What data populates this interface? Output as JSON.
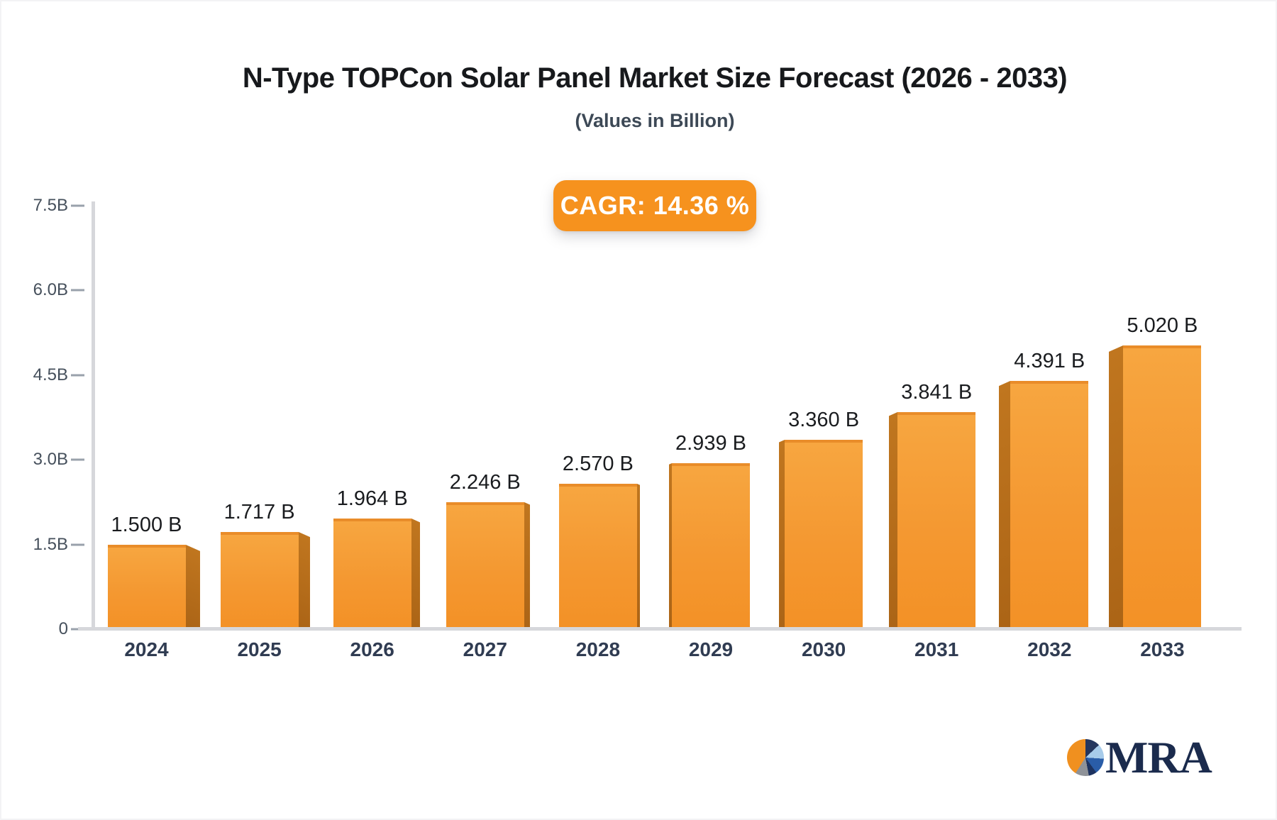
{
  "header": {
    "title": "N-Type TOPCon Solar Panel Market Size Forecast (2026 - 2033)",
    "subtitle": "(Values in Billion)",
    "cagr_label": "CAGR: 14.36 %"
  },
  "chart_data": {
    "type": "bar",
    "title": "N-Type TOPCon Solar Panel Market Size Forecast (2026 - 2033)",
    "subtitle": "(Values in Billion)",
    "cagr_percent": 14.36,
    "categories": [
      "2024",
      "2025",
      "2026",
      "2027",
      "2028",
      "2029",
      "2030",
      "2031",
      "2032",
      "2033"
    ],
    "values": [
      1.5,
      1.717,
      1.964,
      2.246,
      2.57,
      2.939,
      3.36,
      3.841,
      4.391,
      5.02
    ],
    "value_labels": [
      "1.500 B",
      "1.717 B",
      "1.964 B",
      "2.246 B",
      "2.570 B",
      "2.939 B",
      "3.360 B",
      "3.841 B",
      "4.391 B",
      "5.020 B"
    ],
    "xlabel": "",
    "ylabel": "",
    "ylim": [
      0,
      7.5
    ],
    "yticks": [
      {
        "value": 7.5,
        "label": "7.5B"
      },
      {
        "value": 6.0,
        "label": "6.0B"
      },
      {
        "value": 4.5,
        "label": "4.5B"
      },
      {
        "value": 3.0,
        "label": "3.0B"
      },
      {
        "value": 1.5,
        "label": "1.5B"
      },
      {
        "value": 0,
        "label": "0"
      }
    ],
    "grid": false,
    "legend": false,
    "style": "3d-perspective-bars",
    "colors": {
      "bar_front": "#f49a31",
      "bar_front_top_edge": "#e98c29",
      "bar_side": "#b66b1a",
      "axis_line": "#d6d7db",
      "tick_dash": "#99a1ab",
      "value_label_text": "#1a1c1f",
      "year_label_text": "#303c52",
      "accent_orange": "#f6921e"
    }
  },
  "badge": {
    "background": "#f6921e",
    "text_color": "#ffffff"
  },
  "logo": {
    "text": "MRA",
    "text_color": "#1b2b4d",
    "pie_segments": [
      {
        "color": "#24365e",
        "to_pct": 13
      },
      {
        "color": "#a7cbea",
        "to_pct": 26
      },
      {
        "color": "#2a5da8",
        "to_pct": 40
      },
      {
        "color": "#1d3360",
        "to_pct": 47
      },
      {
        "color": "#8e9298",
        "to_pct": 59
      },
      {
        "color": "#f0901f",
        "to_pct": 100
      }
    ]
  }
}
